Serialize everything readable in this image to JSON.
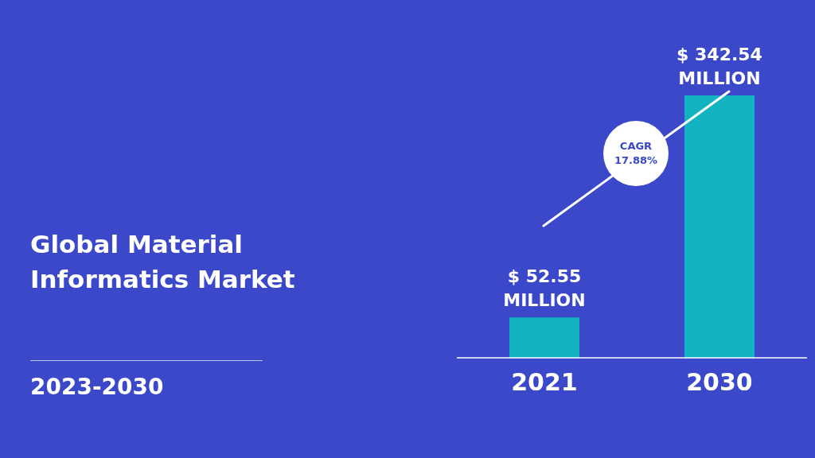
{
  "chart_data": {
    "type": "bar",
    "title": "Global Material Informatics Market",
    "subtitle": "2023-2030",
    "categories": [
      "2021",
      "2030"
    ],
    "values": [
      52.55,
      342.54
    ],
    "color": "#13b3c1",
    "value_labels": [
      "$ 52.55 MILLION",
      "$ 342.54 MILLION"
    ],
    "annotations": [
      "CAGR 17.88%"
    ],
    "grid": false,
    "legend": false
  }
}
